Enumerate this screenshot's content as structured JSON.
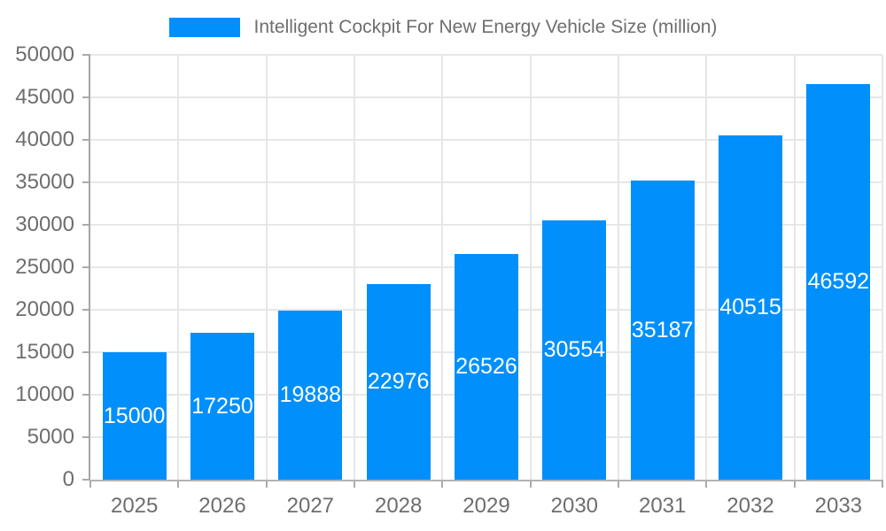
{
  "legend": {
    "label": "Intelligent Cockpit For New Energy Vehicle Size (million)",
    "swatch_color": "#008FFB"
  },
  "chart_data": {
    "type": "bar",
    "title": "",
    "xlabel": "",
    "ylabel": "",
    "categories": [
      "2025",
      "2026",
      "2027",
      "2028",
      "2029",
      "2030",
      "2031",
      "2032",
      "2033"
    ],
    "series": [
      {
        "name": "Intelligent Cockpit For New Energy Vehicle Size (million)",
        "values": [
          15000,
          17250,
          19888,
          22976,
          26526,
          30554,
          35187,
          40515,
          46592
        ]
      }
    ],
    "value_labels": [
      "15000",
      "17250",
      "19888",
      "22976",
      "26526",
      "30554",
      "35187",
      "40515",
      "46592"
    ],
    "ylim": [
      0,
      50000
    ],
    "ytick_step": 5000,
    "ytick_labels": [
      "0",
      "5000",
      "10000",
      "15000",
      "20000",
      "25000",
      "30000",
      "35000",
      "40000",
      "45000",
      "50000"
    ],
    "grid": true,
    "legend_position": "top",
    "colors": {
      "bar": "#008FFB",
      "value_label": "#FFFFFF",
      "axis_text": "#6E6E6E",
      "grid_line": "#E7E7E7",
      "y_axis_line": "#A6A6A6",
      "x_axis_line": "#B3B3B3",
      "tick": "#ABABAB"
    }
  }
}
